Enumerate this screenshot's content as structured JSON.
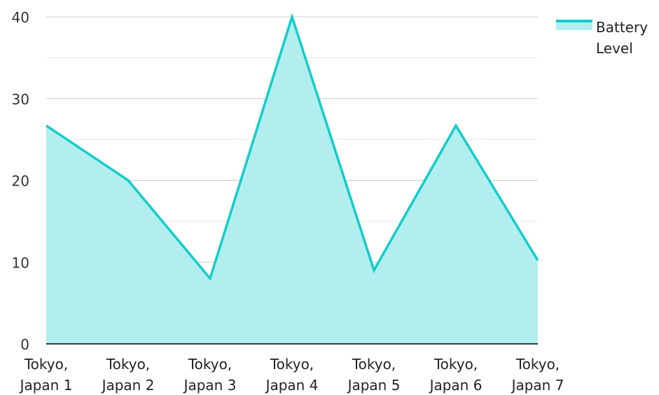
{
  "chart_data": {
    "type": "area",
    "categories": [
      "Tokyo, Japan 1",
      "Tokyo, Japan 2",
      "Tokyo, Japan 3",
      "Tokyo, Japan 4",
      "Tokyo, Japan 5",
      "Tokyo, Japan 6",
      "Tokyo, Japan 7"
    ],
    "category_lines": [
      [
        "Tokyo,",
        "Japan 1"
      ],
      [
        "Tokyo,",
        "Japan 2"
      ],
      [
        "Tokyo,",
        "Japan 3"
      ],
      [
        "Tokyo,",
        "Japan 4"
      ],
      [
        "Tokyo,",
        "Japan 5"
      ],
      [
        "Tokyo,",
        "Japan 6"
      ],
      [
        "Tokyo,",
        "Japan 7"
      ]
    ],
    "series": [
      {
        "name": "Battery Level",
        "values": [
          26.7,
          20,
          8,
          40,
          9,
          26.7,
          10.2
        ]
      }
    ],
    "title": "",
    "xlabel": "",
    "ylabel": "",
    "ylim": [
      0,
      40
    ],
    "yticks": [
      0,
      10,
      20,
      30,
      40
    ],
    "grid": true,
    "legend_position": "top-right",
    "colors": {
      "line": "#14cccc",
      "fill": "#b2eeee",
      "grid": "#cccccc",
      "axis": "#000000"
    }
  },
  "legend": {
    "label_line1": "Battery",
    "label_line2": "Level"
  }
}
